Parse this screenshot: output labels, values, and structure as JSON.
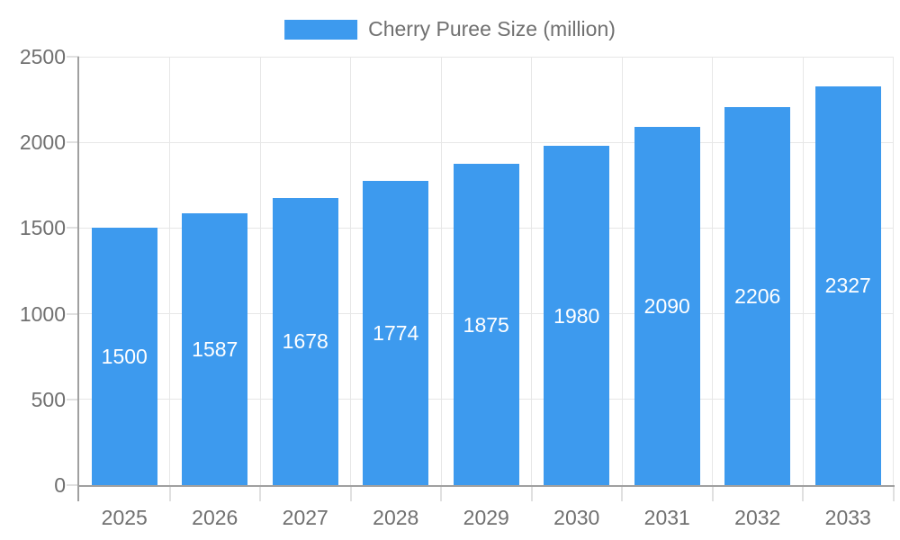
{
  "legend": {
    "label": "Cherry Puree Size (million)"
  },
  "chart_data": {
    "type": "bar",
    "title": "Cherry Puree Size (million)",
    "categories": [
      "2025",
      "2026",
      "2027",
      "2028",
      "2029",
      "2030",
      "2031",
      "2032",
      "2033"
    ],
    "values": [
      1500,
      1587,
      1678,
      1774,
      1875,
      1980,
      2090,
      2206,
      2327
    ],
    "series_name": "Cherry Puree Size (million)",
    "xlabel": "",
    "ylabel": "",
    "ylim": [
      0,
      2500
    ],
    "yticks": [
      0,
      500,
      1000,
      1500,
      2000,
      2500
    ],
    "grid": true,
    "legend_position": "top-center",
    "bar_color": "#3D9AEE",
    "bar_label_color": "#FFFFFF",
    "axis_text_color": "#707070",
    "gridline_color": "#E7E7E7",
    "axis_line_color": "#A0A0A0",
    "background_color": "#FFFFFF"
  }
}
